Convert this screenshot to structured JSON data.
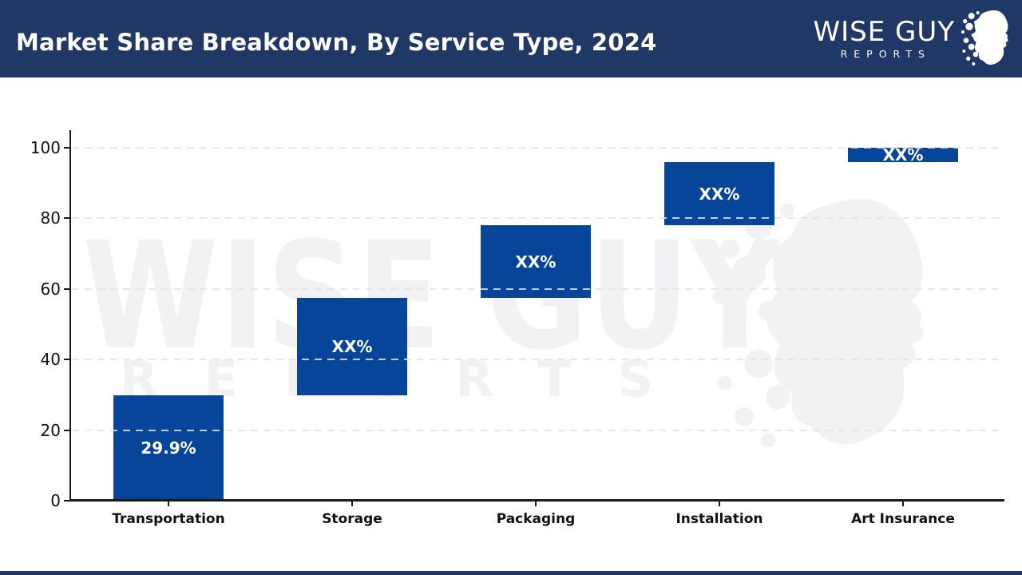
{
  "header": {
    "title": "Market Share Breakdown, By Service Type, 2024",
    "logo": {
      "line1": "WISE GUY",
      "line2": "REPORTS"
    }
  },
  "watermark": {
    "line1": "WISE GUY",
    "line2": "REPORTS"
  },
  "colors": {
    "header_bg": "#1f3865",
    "bar": "#06459a",
    "bar_label": "#ffffff",
    "axis": "#1a1a1a",
    "gridline": "#e6e6e8",
    "watermark": "#f2f2f4"
  },
  "chart_data": {
    "type": "bar",
    "subtype": "waterfall",
    "title": "Market Share Breakdown, By Service Type, 2024",
    "categories": [
      "Transportation",
      "Storage",
      "Packaging",
      "Installation",
      "Art Insurance"
    ],
    "segments": [
      {
        "category": "Transportation",
        "start": 0,
        "end": 29.9,
        "label": "29.9%"
      },
      {
        "category": "Storage",
        "start": 29.9,
        "end": 57.4,
        "label": "XX%"
      },
      {
        "category": "Packaging",
        "start": 57.4,
        "end": 78.0,
        "label": "XX%"
      },
      {
        "category": "Installation",
        "start": 78.0,
        "end": 96.0,
        "label": "XX%"
      },
      {
        "category": "Art Insurance",
        "start": 96.0,
        "end": 100.0,
        "label": "XX%"
      }
    ],
    "ylim": [
      0,
      100
    ],
    "yticks": [
      0,
      20,
      40,
      60,
      80,
      100
    ],
    "xlabel": "",
    "ylabel": "",
    "grid": "horizontal-dashed",
    "legend": "none"
  }
}
